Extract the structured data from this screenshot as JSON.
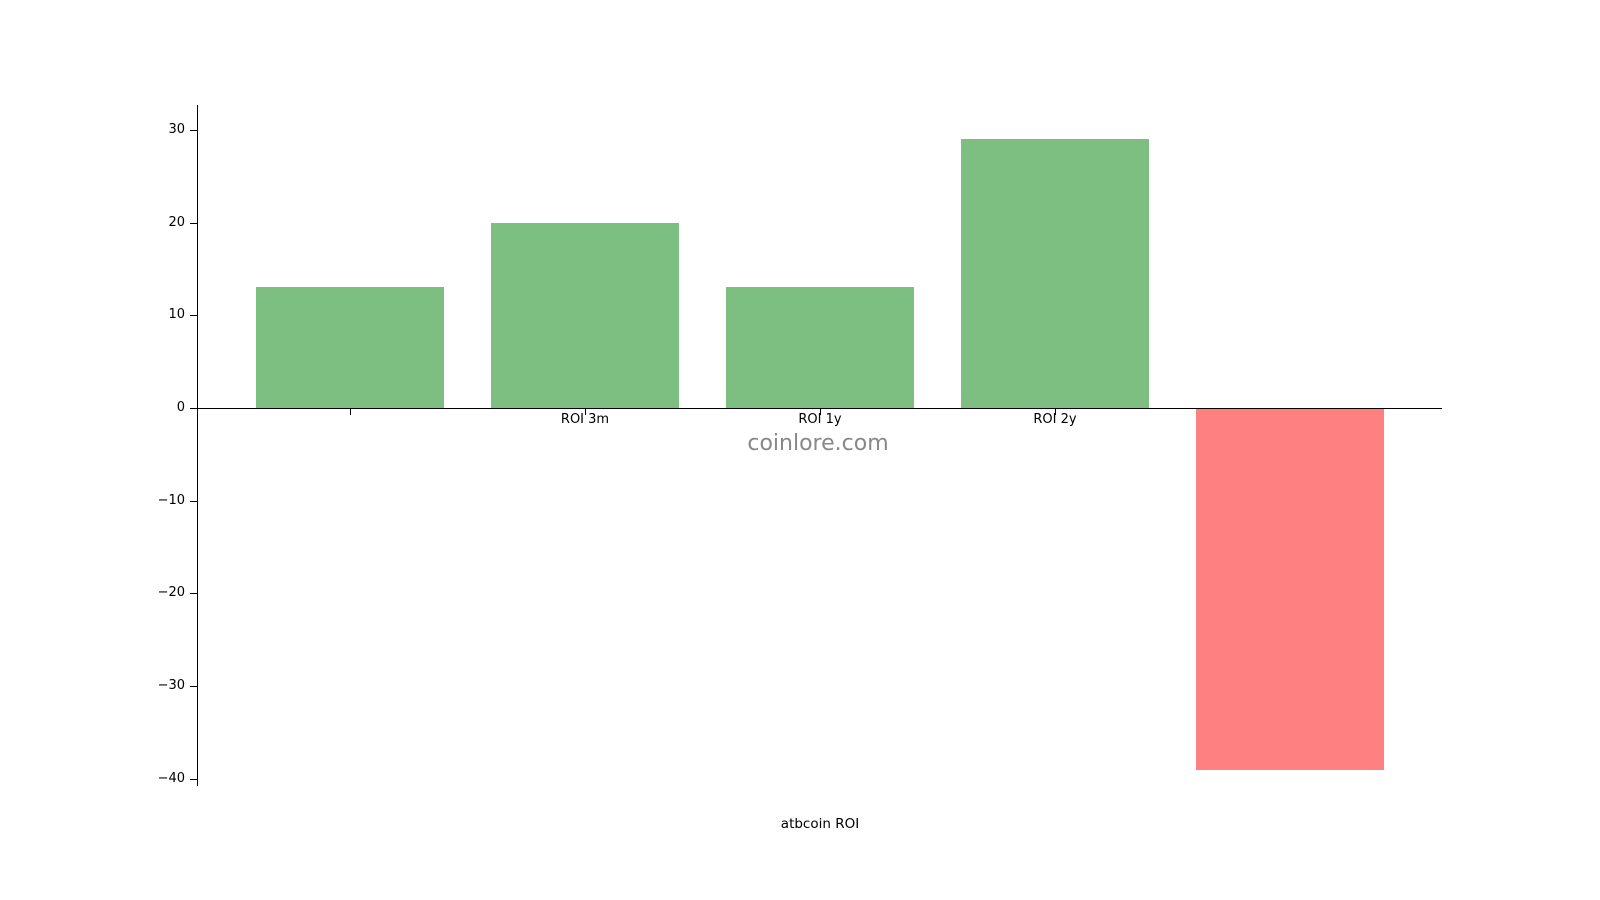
{
  "chart_data": {
    "type": "bar",
    "title": "atbcoin ROI",
    "xlabel": "atbcoin ROI",
    "ylabel": "",
    "watermark": "coinlore.com",
    "categories": [
      "",
      "ROI 3m",
      "ROI 1y",
      "ROI 2y",
      ""
    ],
    "values": [
      13,
      20,
      13,
      29,
      -39
    ],
    "yticks": [
      30,
      20,
      10,
      0,
      -10,
      -20,
      -30,
      -40
    ],
    "ylim": [
      -40.8,
      32.7
    ],
    "grid": false,
    "legend": "none",
    "colors": {
      "positive": "#7dbe81",
      "negative": "#ff8080",
      "axis": "#000000",
      "tick_text": "#000000",
      "watermark": "#888888",
      "background": "#ffffff"
    }
  }
}
